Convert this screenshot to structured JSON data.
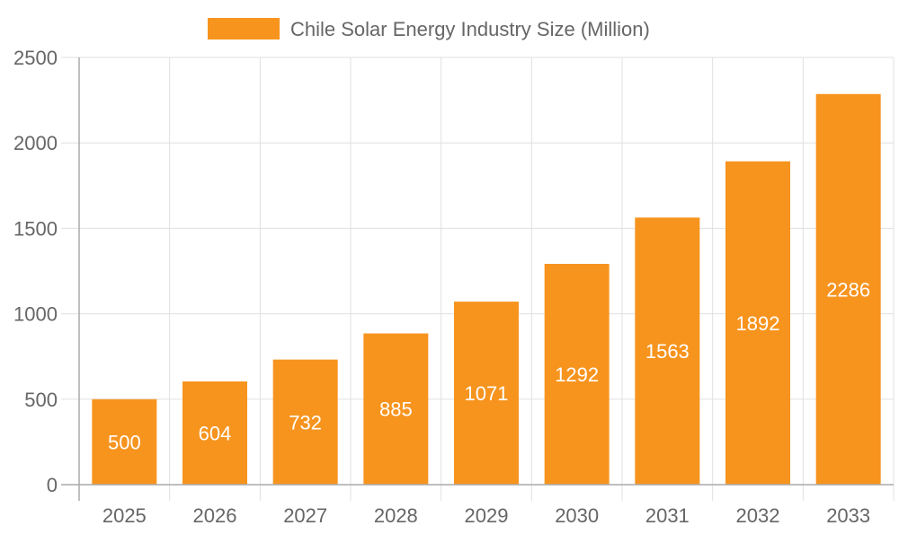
{
  "chart_data": {
    "type": "bar",
    "categories": [
      "2025",
      "2026",
      "2027",
      "2028",
      "2029",
      "2030",
      "2031",
      "2032",
      "2033"
    ],
    "series": [
      {
        "name": "Chile Solar Energy Industry Size (Million)",
        "values": [
          500,
          604,
          732,
          885,
          1071,
          1292,
          1563,
          1892,
          2286
        ],
        "color": "#f7941e"
      }
    ],
    "ylim": [
      0,
      2500
    ],
    "yticks": [
      0,
      500,
      1000,
      1500,
      2000,
      2500
    ],
    "grid": true,
    "legend": "top-center",
    "data_labels": true
  }
}
